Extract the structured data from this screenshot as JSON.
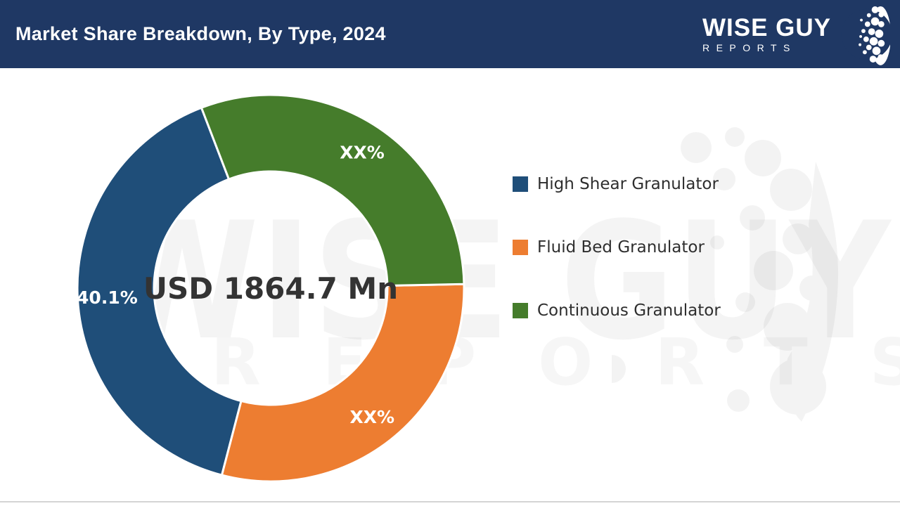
{
  "header": {
    "title": "Market Share Breakdown, By Type, 2024",
    "bg_color": "#1f3864",
    "logo": {
      "line1": "WISE GUY",
      "line2": "REPORTS"
    }
  },
  "watermark": {
    "line1": "WISE GUY",
    "line2": "REPORTS"
  },
  "chart_data": {
    "type": "pie",
    "subtype": "donut",
    "title": "Market Share Breakdown, By Type, 2024",
    "center_label": "USD 1864.7 Mn",
    "start_angle_deg": 111,
    "direction": "counterclockwise",
    "inner_radius_ratio": 0.6,
    "legend_position": "right",
    "slices": [
      {
        "label": "High Shear Granulator",
        "value_pct": 40.1,
        "display_label": "40.1%",
        "color": "#1f4e79"
      },
      {
        "label": "Fluid Bed Granulator",
        "value_pct": 29.4,
        "display_label": "XX%",
        "color": "#ed7d31"
      },
      {
        "label": "Continuous Granulator",
        "value_pct": 30.5,
        "display_label": "XX%",
        "color": "#457c2b"
      }
    ]
  },
  "colors": {
    "header_bg": "#1f3864",
    "center_text": "#333333",
    "legend_text": "#2e2e2e",
    "slice_separator": "#ffffff",
    "bottom_hairline": "#d4d4d4"
  }
}
